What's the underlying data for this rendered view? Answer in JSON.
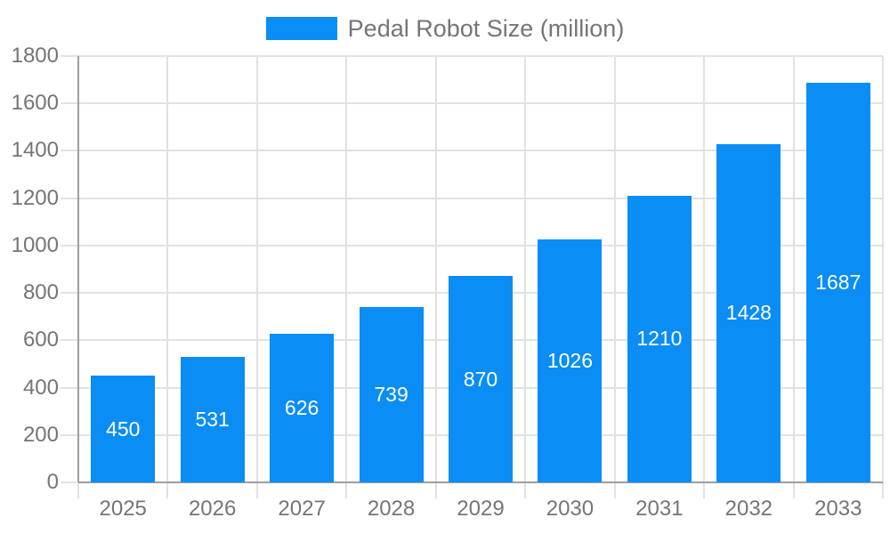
{
  "legend": {
    "label": "Pedal Robot Size (million)"
  },
  "chart_data": {
    "type": "bar",
    "title": "Pedal Robot Size (million)",
    "categories": [
      "2025",
      "2026",
      "2027",
      "2028",
      "2029",
      "2030",
      "2031",
      "2032",
      "2033"
    ],
    "series": [
      {
        "name": "Pedal Robot Size (million)",
        "values": [
          450,
          531,
          626,
          739,
          870,
          1026,
          1210,
          1428,
          1687
        ]
      }
    ],
    "bar_labels": [
      "450",
      "531",
      "626",
      "739",
      "870",
      "1026",
      "1210",
      "1428",
      "1687"
    ],
    "xlabel": "",
    "ylabel": "",
    "ylim": [
      0,
      1800
    ],
    "ytick_step": 200,
    "ytick_labels": [
      "0",
      "200",
      "400",
      "600",
      "800",
      "1000",
      "1200",
      "1400",
      "1600",
      "1800"
    ],
    "grid": true,
    "legend_position": "top-center",
    "colors": {
      "bar": "#0a8df5",
      "bar_value_text": "#ffffff",
      "axis_text": "#757575",
      "axis_line": "#9e9e9e",
      "gridline": "#e2e2e2",
      "background": "#ffffff"
    }
  }
}
